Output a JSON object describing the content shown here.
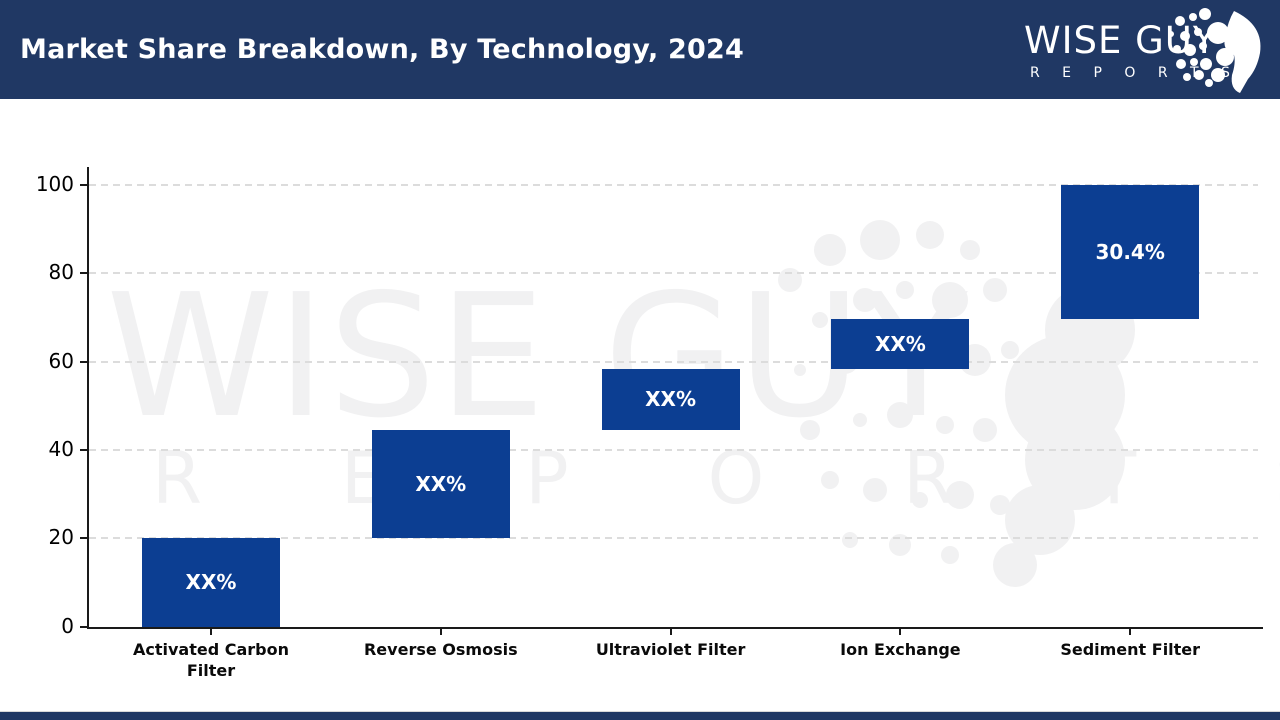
{
  "header": {
    "title": "Market Share Breakdown, By Technology, 2024",
    "logo": {
      "line1": "WISE GUY",
      "line2": "R E P O R T S"
    }
  },
  "watermark": {
    "line1": "WISE GUY",
    "line2": "R E P O R T S"
  },
  "colors": {
    "header_bg": "#203864",
    "bar": "#0c3e92",
    "grid": "#dcdcdc",
    "axis": "#1a1a1a",
    "watermark": "#f1f1f2",
    "bar_label": "#ffffff"
  },
  "chart_data": {
    "type": "bar",
    "subtype": "waterfall",
    "title": "Market Share Breakdown, By Technology, 2024",
    "xlabel": "",
    "ylabel": "",
    "ylim": [
      0,
      105
    ],
    "yticks": [
      0,
      20,
      40,
      60,
      80,
      100
    ],
    "grid": "horizontal-dashed",
    "legend": "none",
    "categories": [
      "Activated Carbon\nFilter",
      "Reverse Osmosis",
      "Ultraviolet Filter",
      "Ion Exchange",
      "Sediment Filter"
    ],
    "segments": [
      {
        "category": "Activated Carbon Filter",
        "start": 0,
        "end": 20,
        "value_label": "XX%"
      },
      {
        "category": "Reverse Osmosis",
        "start": 20,
        "end": 44.6,
        "value_label": "XX%"
      },
      {
        "category": "Ultraviolet Filter",
        "start": 44.6,
        "end": 58.3,
        "value_label": "XX%"
      },
      {
        "category": "Ion Exchange",
        "start": 58.3,
        "end": 69.6,
        "value_label": "XX%"
      },
      {
        "category": "Sediment Filter",
        "start": 69.6,
        "end": 100,
        "value_label": "30.4%"
      }
    ]
  }
}
